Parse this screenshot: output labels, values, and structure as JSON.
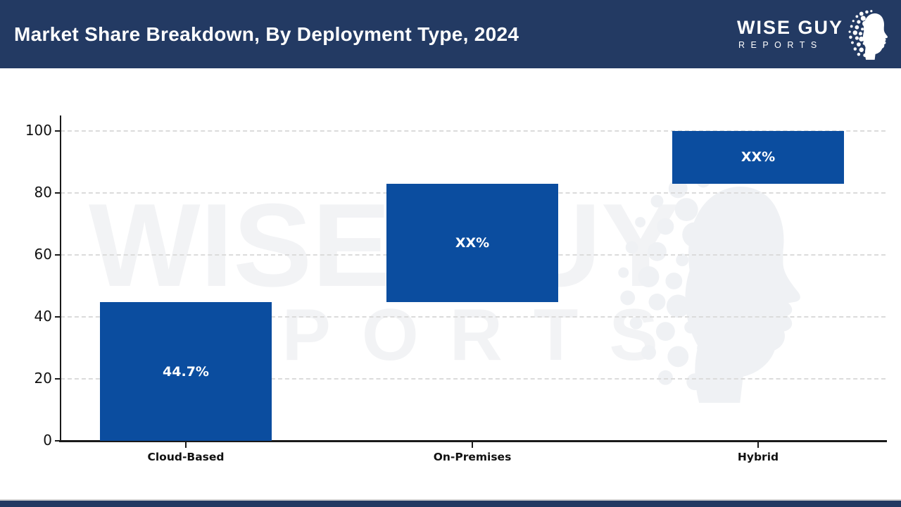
{
  "header": {
    "title": "Market Share Breakdown, By Deployment Type, 2024",
    "logo": {
      "line1": "WISE GUY",
      "line2": "REPORTS"
    }
  },
  "watermark": {
    "line1": "WISE GUY",
    "line2": "REPORTS"
  },
  "chart_data": {
    "type": "bar",
    "subtype": "floating-segment waterfall bars",
    "title": "Market Share Breakdown, By Deployment Type, 2024",
    "categories": [
      "Cloud-Based",
      "On-Premises",
      "Hybrid"
    ],
    "segments": [
      {
        "category": "Cloud-Based",
        "from": 0,
        "to": 44.7,
        "value_label": "44.7%"
      },
      {
        "category": "On-Premises",
        "from": 44.7,
        "to": 83,
        "value_label": "XX%"
      },
      {
        "category": "Hybrid",
        "from": 83,
        "to": 100,
        "value_label": "XX%"
      }
    ],
    "xlabel": "",
    "ylabel": "",
    "ylim": [
      0,
      100
    ],
    "yticks": [
      0,
      20,
      40,
      60,
      80,
      100
    ],
    "grid": "horizontal dashed",
    "legend": "none"
  },
  "colors": {
    "header_bg": "#233A63",
    "bar": "#0B4D9F",
    "grid": "#DBDBDB",
    "axis": "#1A1A1A",
    "bar_label_text": "#FFFFFF",
    "tick_text": "#111111",
    "watermark": "#F2F3F5"
  }
}
